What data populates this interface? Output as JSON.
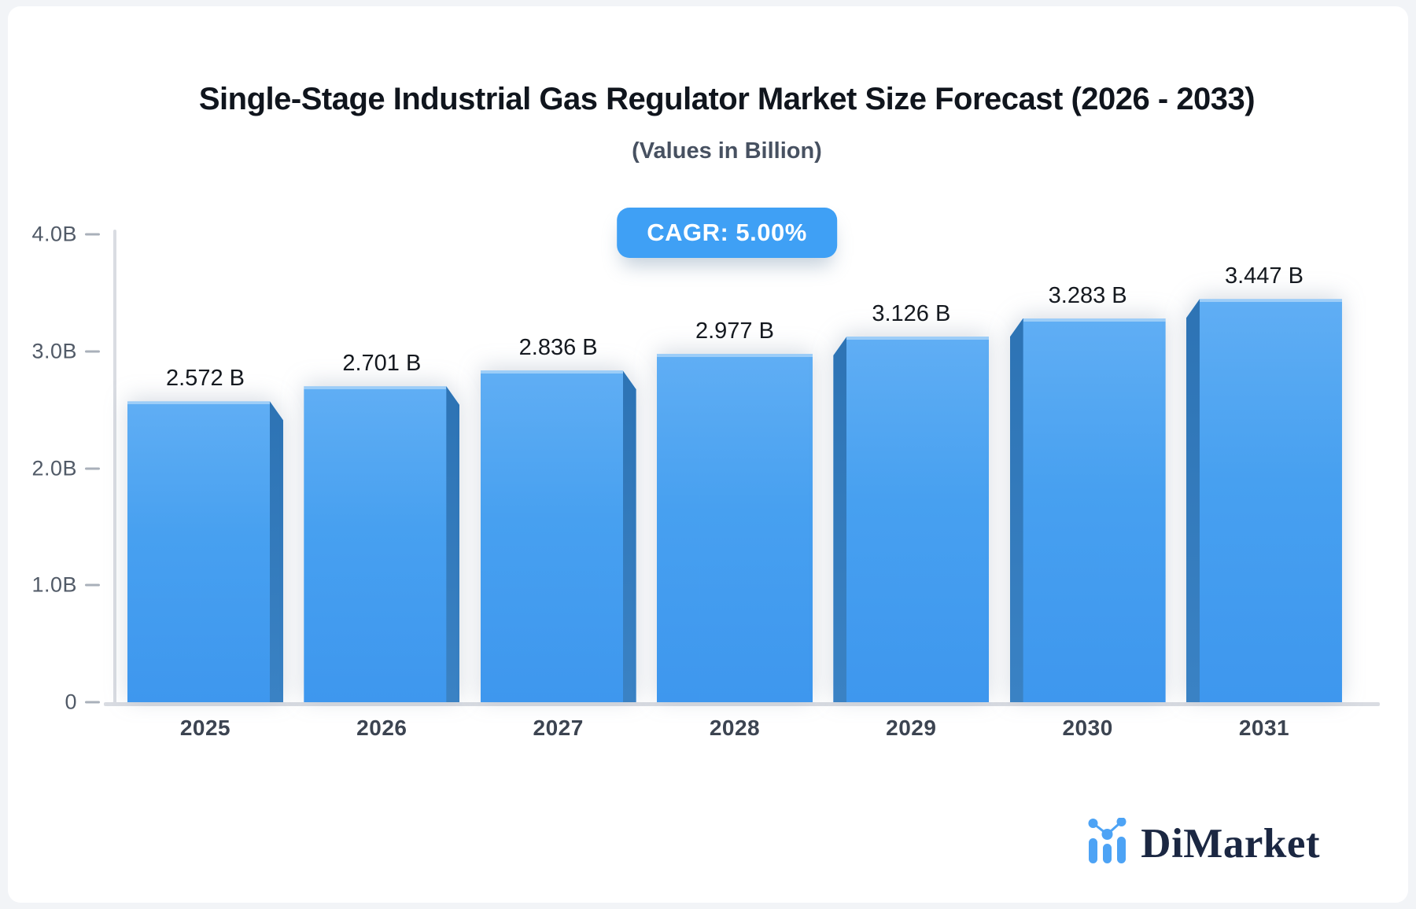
{
  "page": {
    "title": "Single-Stage Industrial Gas Regulator Market Size Forecast (2026 - 2033)",
    "subtitle": "(Values in Billion)",
    "cagr_badge": "CAGR: 5.00%"
  },
  "chart_data": {
    "type": "bar",
    "title": "Single-Stage Industrial Gas Regulator Market Size Forecast (2026 - 2033)",
    "subtitle": "(Values in Billion)",
    "annotation": "CAGR: 5.00%",
    "categories": [
      "2025",
      "2026",
      "2027",
      "2028",
      "2029",
      "2030",
      "2031"
    ],
    "values": [
      2.572,
      2.701,
      2.836,
      2.977,
      3.126,
      3.283,
      3.447
    ],
    "bar_labels": [
      "2.572 B",
      "2.701 B",
      "2.836 B",
      "2.977 B",
      "3.126 B",
      "3.283 B",
      "3.447 B"
    ],
    "xlabel": "",
    "ylabel": "",
    "ylim": [
      0,
      4.0
    ],
    "y_ticks": [
      {
        "value": 4.0,
        "label": "4.0B"
      },
      {
        "value": 3.0,
        "label": "3.0B"
      },
      {
        "value": 2.0,
        "label": "2.0B"
      },
      {
        "value": 1.0,
        "label": "1.0B"
      },
      {
        "value": 0,
        "label": "0"
      }
    ],
    "grid": false,
    "legend": false,
    "style": "3d-extruded-bars",
    "colors": {
      "bar_face_top": "#60aef4",
      "bar_face_bottom": "#3e97ee",
      "bar_side": "#2d73b4",
      "axis_line": "#d9dce2",
      "tick_text": "#515a67",
      "value_label_text": "#14181e",
      "category_text": "#3c4451"
    }
  },
  "badge_colors": {
    "background": "#3fa0f5",
    "text": "#ffffff"
  },
  "branding": {
    "logo_text": "DiMarket",
    "logo_icon": "bar-chart-trend-icon",
    "logo_text_color": "#1b2742",
    "logo_icon_color": "#4da3f5"
  }
}
